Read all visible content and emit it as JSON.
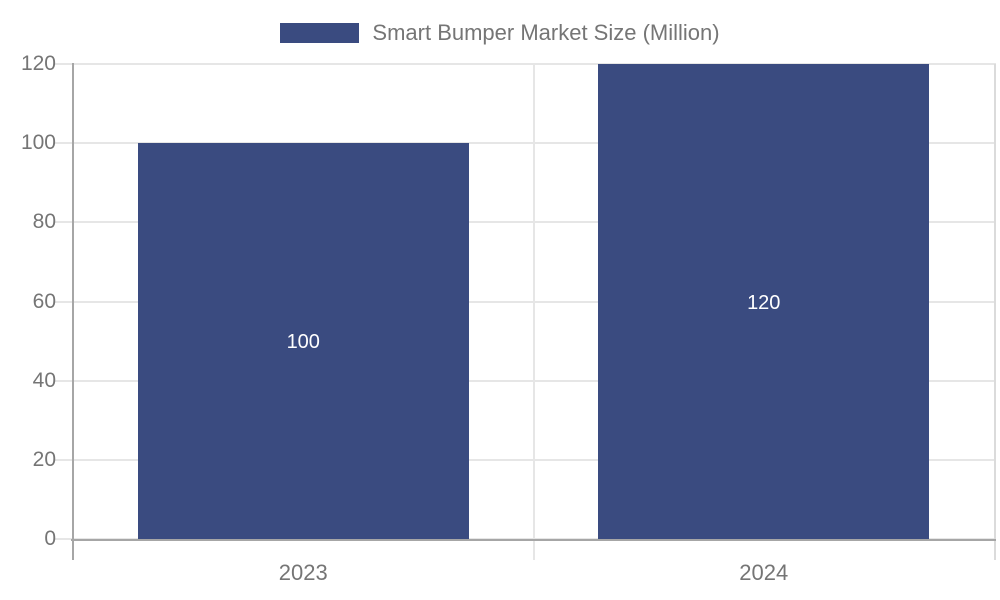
{
  "chart_data": {
    "type": "bar",
    "title": "Smart Bumper Market Size (Million)",
    "categories": [
      "2023",
      "2024"
    ],
    "values": [
      100,
      120
    ],
    "bar_labels": [
      "100",
      "120"
    ],
    "series": [
      {
        "name": "Smart Bumper Market Size (Million)",
        "values": [
          100,
          120
        ]
      }
    ],
    "y_ticks": [
      "0",
      "20",
      "40",
      "60",
      "80",
      "100",
      "120"
    ],
    "y_tick_values": [
      0,
      20,
      40,
      60,
      80,
      100,
      120
    ],
    "ylim": [
      0,
      120
    ],
    "xlabel": "",
    "ylabel": "",
    "grid": true,
    "legend": {
      "label": "Smart Bumper Market Size (Million)",
      "position": "top-center"
    },
    "colors": {
      "bar": "#3A4B80",
      "bar_label": "#FFFFFF",
      "axis_line": "#A6A6A6",
      "grid_line": "#E6E6E6",
      "plot_border": "#DBDBDB",
      "tick_label": "#757575",
      "title_text": "#757575",
      "background": "#FFFFFF"
    }
  }
}
